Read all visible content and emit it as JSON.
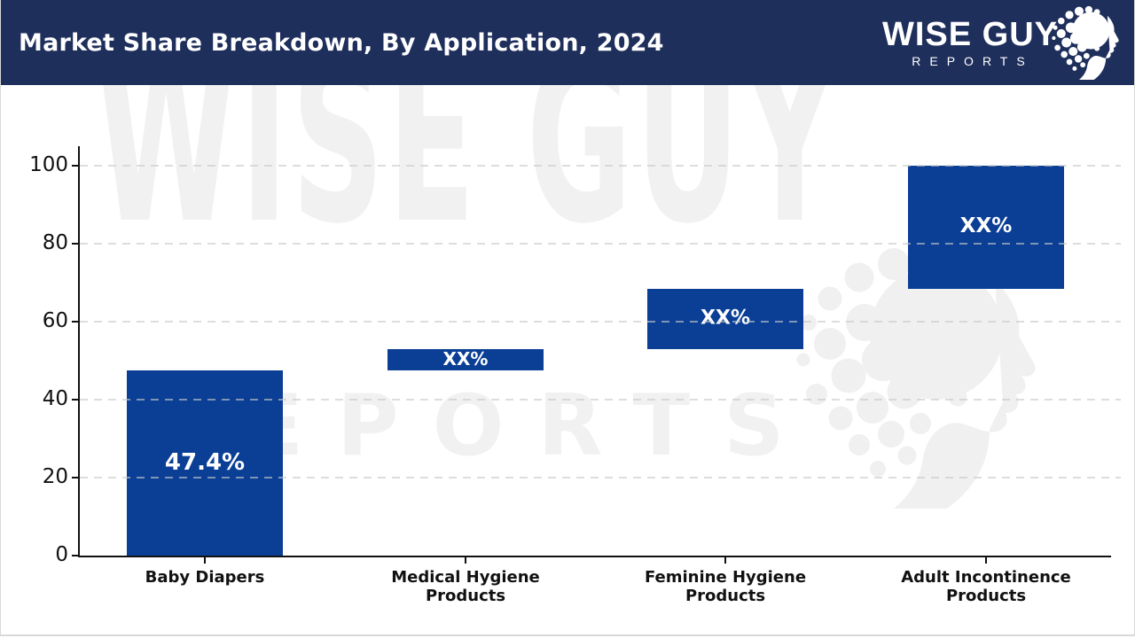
{
  "header": {
    "title": "Market Share Breakdown, By Application, 2024",
    "logo": {
      "line1": "WISE GUY",
      "line2": "REPORTS"
    }
  },
  "watermark": {
    "line1": "WISE GUY",
    "line2": "REPORTS"
  },
  "colors": {
    "header_bg": "#1f2f5c",
    "bar": "#0b3f96",
    "bar_value_text": "#ffffff",
    "axis": "#111111",
    "gridline": "#c8c8c8",
    "watermark": "#f1f1f2",
    "frame_border": "#d8d8d8"
  },
  "chart_data": {
    "type": "bar",
    "subtype": "floating-waterfall",
    "title": "Market Share Breakdown, By Application, 2024",
    "xlabel": "",
    "ylabel": "",
    "ylim": [
      0,
      105
    ],
    "yticks": [
      0,
      20,
      40,
      60,
      80,
      100
    ],
    "grid": "dashed-horizontal",
    "legend": "none",
    "categories": [
      "Baby Diapers",
      "Medical Hygiene Products",
      "Feminine Hygiene Products",
      "Adult Incontinence Products"
    ],
    "segments": [
      {
        "category": "Baby Diapers",
        "label_lines": [
          "Baby Diapers"
        ],
        "start": 0,
        "end": 47.4,
        "value_label": "47.4%"
      },
      {
        "category": "Medical Hygiene Products",
        "label_lines": [
          "Medical Hygiene",
          "Products"
        ],
        "start": 47.4,
        "end": 53.0,
        "value_label": "XX%"
      },
      {
        "category": "Feminine Hygiene Products",
        "label_lines": [
          "Feminine Hygiene",
          "Products"
        ],
        "start": 53.0,
        "end": 68.5,
        "value_label": "XX%"
      },
      {
        "category": "Adult Incontinence Products",
        "label_lines": [
          "Adult Incontinence",
          "Products"
        ],
        "start": 68.5,
        "end": 100.0,
        "value_label": "XX%"
      }
    ]
  }
}
